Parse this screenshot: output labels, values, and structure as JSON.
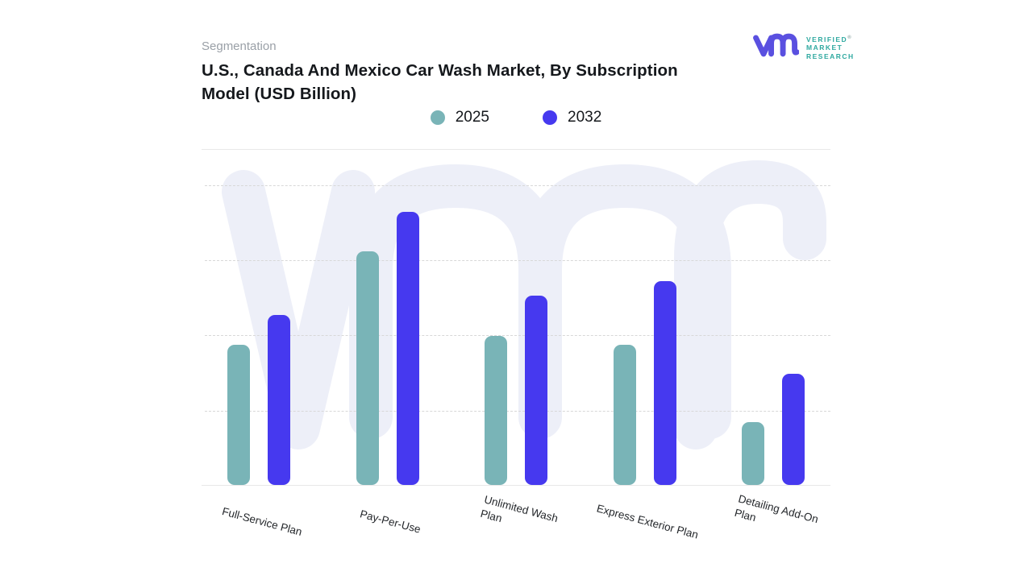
{
  "header": {
    "eyebrow": "Segmentation",
    "title_line1": "U.S., Canada And Mexico Car Wash Market, By Subscription",
    "title_line2": "Model (USD Billion)"
  },
  "logo": {
    "glyph": "vmr-monogram",
    "lines": [
      "VERIFIED",
      "MARKET",
      "RESEARCH"
    ],
    "registered": "®",
    "glyph_color": "#5a50e0",
    "text_color": "#2fa9a0"
  },
  "watermark": {
    "glyph": "vmr-monogram-watermark",
    "color": "#edeff8"
  },
  "chart_data": {
    "type": "bar",
    "title": "U.S., Canada And Mexico Car Wash Market, By Subscription Model (USD Billion)",
    "value_unit": "USD Billion",
    "categories": [
      "Full-Service Plan",
      "Pay-Per-Use",
      "Unlimited Wash\nPlan",
      "Express Exterior Plan",
      "Detailing Add-On\nPlan"
    ],
    "series": [
      {
        "name": "2025",
        "color": "#79b4b7",
        "values": [
          1.86,
          3.11,
          1.98,
          1.86,
          0.84
        ]
      },
      {
        "name": "2032",
        "color": "#4639ef",
        "values": [
          2.26,
          3.63,
          2.52,
          2.71,
          1.48
        ]
      }
    ],
    "xlabel": "",
    "ylabel": "",
    "ylim": [
      0,
      4.47
    ],
    "gridlines": [
      1,
      2,
      3,
      4
    ],
    "grid": "horizontal dashed, no y-axis tick labels",
    "legend_position": "top center",
    "colors": {
      "grid_line": "#d8d8d8",
      "axis_line": "#e7e7e7",
      "label_text": "#24272b",
      "title_text": "#15181c",
      "eyebrow_text": "#9aa0a7"
    }
  }
}
